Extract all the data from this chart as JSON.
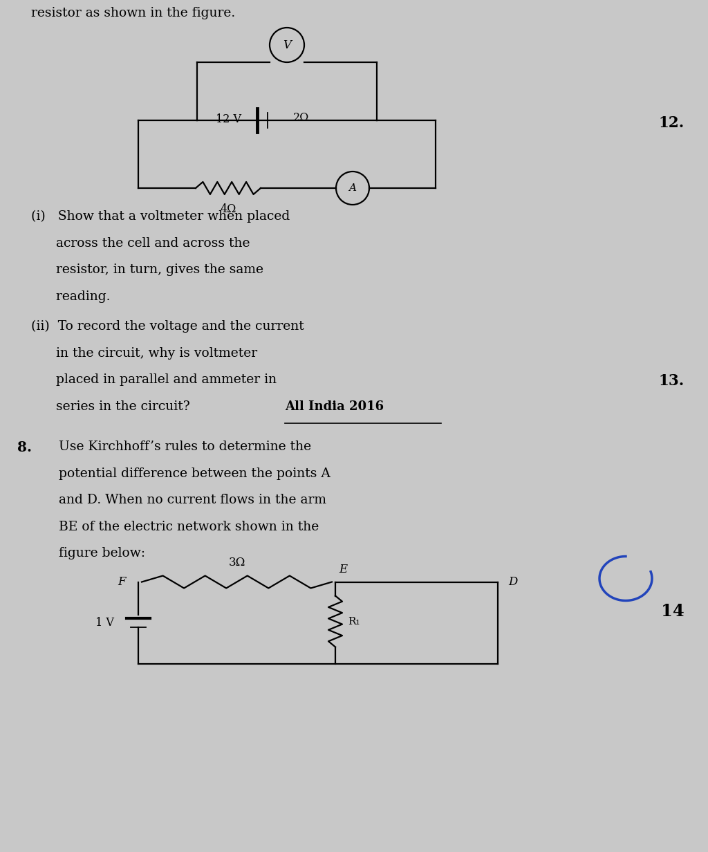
{
  "bg_color": "#c8c8c8",
  "text_color": "#000000",
  "top_text": "resistor as shown in the figure.",
  "q12_label": "12.",
  "q13_label": "13.",
  "q8_label": "8.",
  "page14": "14",
  "circuit1": {
    "voltmeter_label": "V",
    "battery_label": "12 V",
    "internal_res_label": "2Ω",
    "resistor_label": "4Ω",
    "ammeter_label": "A"
  },
  "circuit2": {
    "res_label": "3Ω",
    "node_F": "F",
    "node_E": "E",
    "node_D": "D",
    "battery_label": "1 V",
    "res2_label": "R₁"
  },
  "text_blocks": {
    "part_i_line1": "(i)   Show that a voltmeter when placed",
    "part_i_line2": "      across the cell and across the",
    "part_i_line3": "      resistor, in turn, gives the same",
    "part_i_line4": "      reading.",
    "part_ii_line1": "(ii)  To record the voltage and the current",
    "part_ii_line2": "      in the circuit, why is voltmeter",
    "part_ii_line3": "      placed in parallel and ammeter in",
    "part_ii_line4": "      series in the circuit?",
    "part_ii_source": "All India 2016",
    "q8_line1": "Use Kirchhoff’s rules to determine the",
    "q8_line2": "potential difference between the points A",
    "q8_line3": "and D. When no current flows in the arm",
    "q8_line4": "BE of the electric network shown in the",
    "q8_line5": "figure below:"
  }
}
